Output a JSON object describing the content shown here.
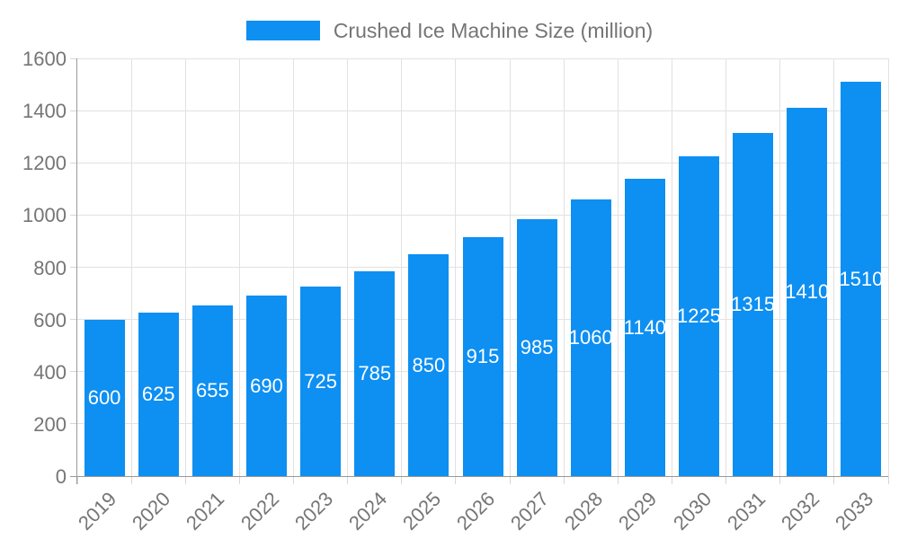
{
  "chart_data": {
    "type": "bar",
    "title": "Crushed Ice Machine Size (million)",
    "legend_position": "top",
    "categories": [
      "2019",
      "2020",
      "2021",
      "2022",
      "2023",
      "2024",
      "2025",
      "2026",
      "2027",
      "2028",
      "2029",
      "2030",
      "2031",
      "2032",
      "2033"
    ],
    "values": [
      600,
      625,
      655,
      690,
      725,
      785,
      850,
      915,
      985,
      1060,
      1140,
      1225,
      1315,
      1410,
      1510
    ],
    "xlabel": "",
    "ylabel": "",
    "ylim": [
      0,
      1600
    ],
    "yticks": [
      0,
      200,
      400,
      600,
      800,
      1000,
      1200,
      1400,
      1600
    ],
    "grid": true,
    "bar_labels_visible": true,
    "colors": {
      "bar": "#0e8ff2",
      "bar_label": "#ffffff",
      "axis_text": "#757575",
      "legend_text": "#757575",
      "axis_line": "#999999",
      "grid_line": "#e2e2e2",
      "tick_line": "#d6d6d6",
      "background": "#ffffff"
    }
  }
}
